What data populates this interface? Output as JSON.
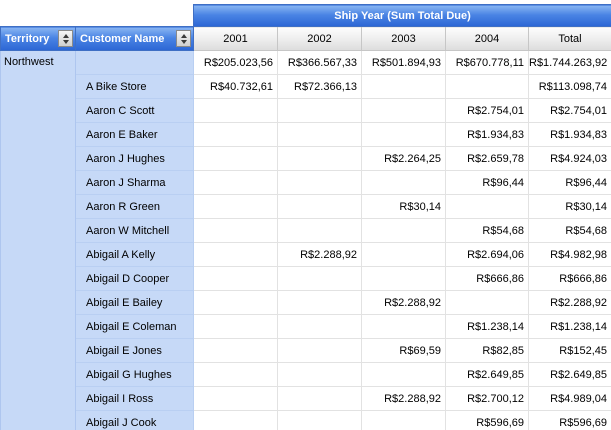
{
  "pivot": {
    "column_group_header": "Ship Year (Sum Total Due)",
    "row_field_headers": [
      {
        "label": "Territory"
      },
      {
        "label": "Customer Name"
      }
    ],
    "value_columns": [
      "2001",
      "2002",
      "2003",
      "2004",
      "Total"
    ],
    "territory_label": "Northwest",
    "rows": [
      {
        "customer": "",
        "values": [
          "R$205.023,56",
          "R$366.567,33",
          "R$501.894,93",
          "R$670.778,11",
          "R$1.744.263,92"
        ]
      },
      {
        "customer": "A Bike Store",
        "values": [
          "R$40.732,61",
          "R$72.366,13",
          "",
          "",
          "R$113.098,74"
        ]
      },
      {
        "customer": "Aaron C Scott",
        "values": [
          "",
          "",
          "",
          "R$2.754,01",
          "R$2.754,01"
        ]
      },
      {
        "customer": "Aaron E Baker",
        "values": [
          "",
          "",
          "",
          "R$1.934,83",
          "R$1.934,83"
        ]
      },
      {
        "customer": "Aaron J Hughes",
        "values": [
          "",
          "",
          "R$2.264,25",
          "R$2.659,78",
          "R$4.924,03"
        ]
      },
      {
        "customer": "Aaron J Sharma",
        "values": [
          "",
          "",
          "",
          "R$96,44",
          "R$96,44"
        ]
      },
      {
        "customer": "Aaron R Green",
        "values": [
          "",
          "",
          "R$30,14",
          "",
          "R$30,14"
        ]
      },
      {
        "customer": "Aaron W Mitchell",
        "values": [
          "",
          "",
          "",
          "R$54,68",
          "R$54,68"
        ]
      },
      {
        "customer": "Abigail A Kelly",
        "values": [
          "",
          "R$2.288,92",
          "",
          "R$2.694,06",
          "R$4.982,98"
        ]
      },
      {
        "customer": "Abigail D Cooper",
        "values": [
          "",
          "",
          "",
          "R$666,86",
          "R$666,86"
        ]
      },
      {
        "customer": "Abigail E Bailey",
        "values": [
          "",
          "",
          "R$2.288,92",
          "",
          "R$2.288,92"
        ]
      },
      {
        "customer": "Abigail E Coleman",
        "values": [
          "",
          "",
          "",
          "R$1.238,14",
          "R$1.238,14"
        ]
      },
      {
        "customer": "Abigail E Jones",
        "values": [
          "",
          "",
          "R$69,59",
          "R$82,85",
          "R$152,45"
        ]
      },
      {
        "customer": "Abigail G Hughes",
        "values": [
          "",
          "",
          "",
          "R$2.649,85",
          "R$2.649,85"
        ]
      },
      {
        "customer": "Abigail I Ross",
        "values": [
          "",
          "",
          "R$2.288,92",
          "R$2.700,12",
          "R$4.989,04"
        ]
      },
      {
        "customer": "Abigail J Cook",
        "values": [
          "",
          "",
          "",
          "R$596,69",
          "R$596,69"
        ]
      }
    ],
    "colors": {
      "header_blue_top": "#8ab6f2",
      "header_blue_bottom": "#2c66d4",
      "row_field_bg": "#c6d9f7",
      "grid_border": "#e2e2e2"
    }
  }
}
